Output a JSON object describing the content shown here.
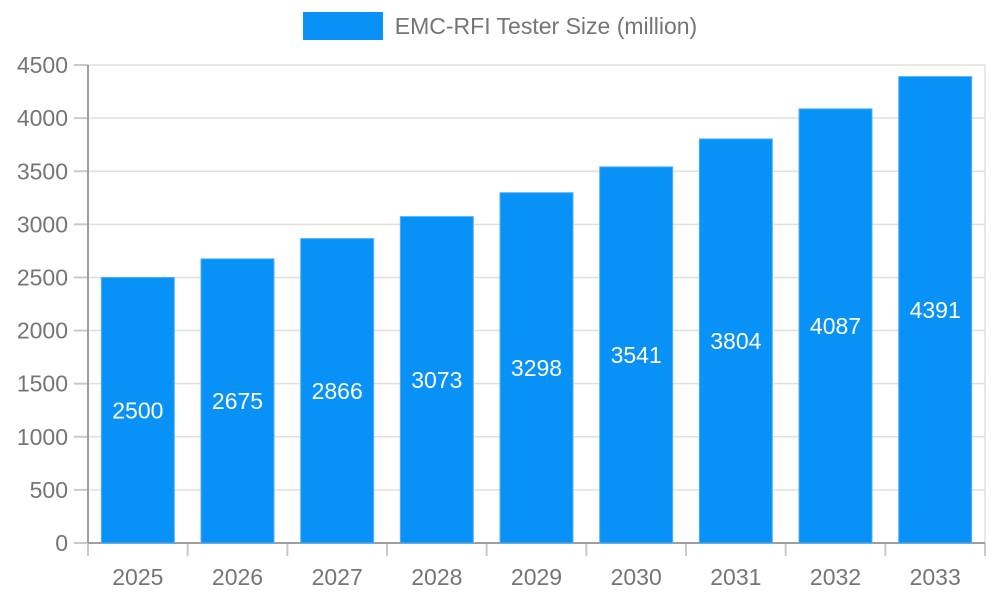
{
  "legend": {
    "label": "EMC-RFI Tester Size (million)"
  },
  "chart_data": {
    "type": "bar",
    "title": "EMC-RFI Tester Size (million)",
    "series_name": "EMC-RFI Tester Size (million)",
    "categories": [
      "2025",
      "2026",
      "2027",
      "2028",
      "2029",
      "2030",
      "2031",
      "2032",
      "2033"
    ],
    "values": [
      2500,
      2675,
      2866,
      3073,
      3298,
      3541,
      3804,
      4087,
      4391
    ],
    "xlabel": "",
    "ylabel": "",
    "ylim": [
      0,
      4500
    ],
    "ytick_step": 500,
    "grid": true,
    "legend_position": "top-center",
    "bar_label_position": "inside-center",
    "colors": {
      "bar": "#0892f8",
      "bar_stroke": "#55b0f6",
      "bar_label": "#ffffff",
      "axis_label": "#757575",
      "grid_line": "#e0e0e0",
      "axis_line": "#9e9e9e",
      "tick": "#c9c9c9"
    }
  }
}
